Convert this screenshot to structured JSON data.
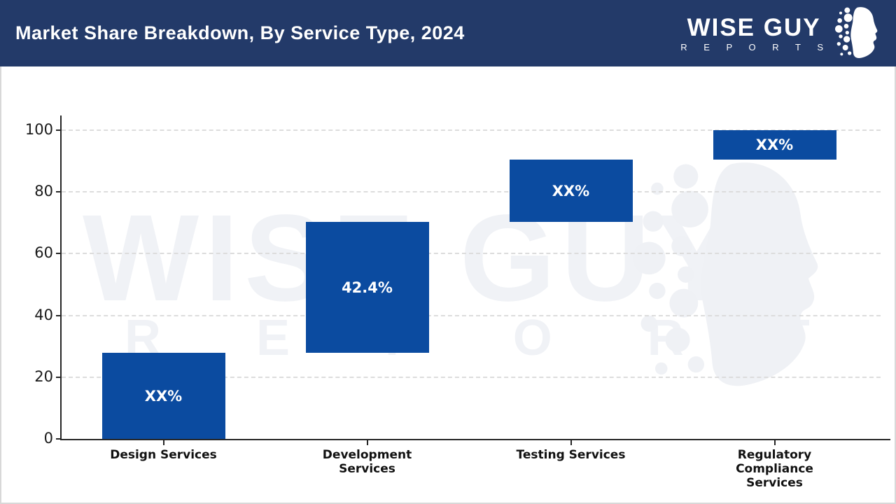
{
  "header": {
    "title": "Market Share Breakdown, By Service Type, 2024",
    "background_color": "#233a69",
    "logo": {
      "line1": "WISE GUY",
      "line2": "R E P O R T S"
    }
  },
  "watermark": {
    "line1": "WISE GUY",
    "line2": "R E P O R T S"
  },
  "chart_data": {
    "type": "bar",
    "variant": "floating-waterfall-segments",
    "title": "Market Share Breakdown, By Service Type, 2024",
    "categories": [
      "Design Services",
      "Development Services",
      "Testing Services",
      "Regulatory Compliance Services"
    ],
    "x_tick_labels": [
      [
        "Design Services"
      ],
      [
        "Development",
        "Services"
      ],
      [
        "Testing Services"
      ],
      [
        "Regulatory",
        "Compliance",
        "Services"
      ]
    ],
    "segments": [
      {
        "category": "Design Services",
        "start": 0,
        "end": 27.8,
        "value": 27.8,
        "label": "XX%"
      },
      {
        "category": "Development Services",
        "start": 27.8,
        "end": 70.2,
        "value": 42.4,
        "label": "42.4%"
      },
      {
        "category": "Testing Services",
        "start": 70.2,
        "end": 90.5,
        "value": 20.3,
        "label": "XX%"
      },
      {
        "category": "Regulatory Compliance Services",
        "start": 90.5,
        "end": 100,
        "value": 9.5,
        "label": "XX%"
      }
    ],
    "xlabel": "",
    "ylabel": "",
    "ylim": [
      0,
      105
    ],
    "yticks": [
      0,
      20,
      40,
      60,
      80,
      100
    ],
    "grid": "horizontal-dashed",
    "legend": "none",
    "bar_color": "#0b4ba0",
    "axis_color": "#262626",
    "grid_color": "#dcdcdc",
    "tick_label_color": "#1a1a1a"
  }
}
